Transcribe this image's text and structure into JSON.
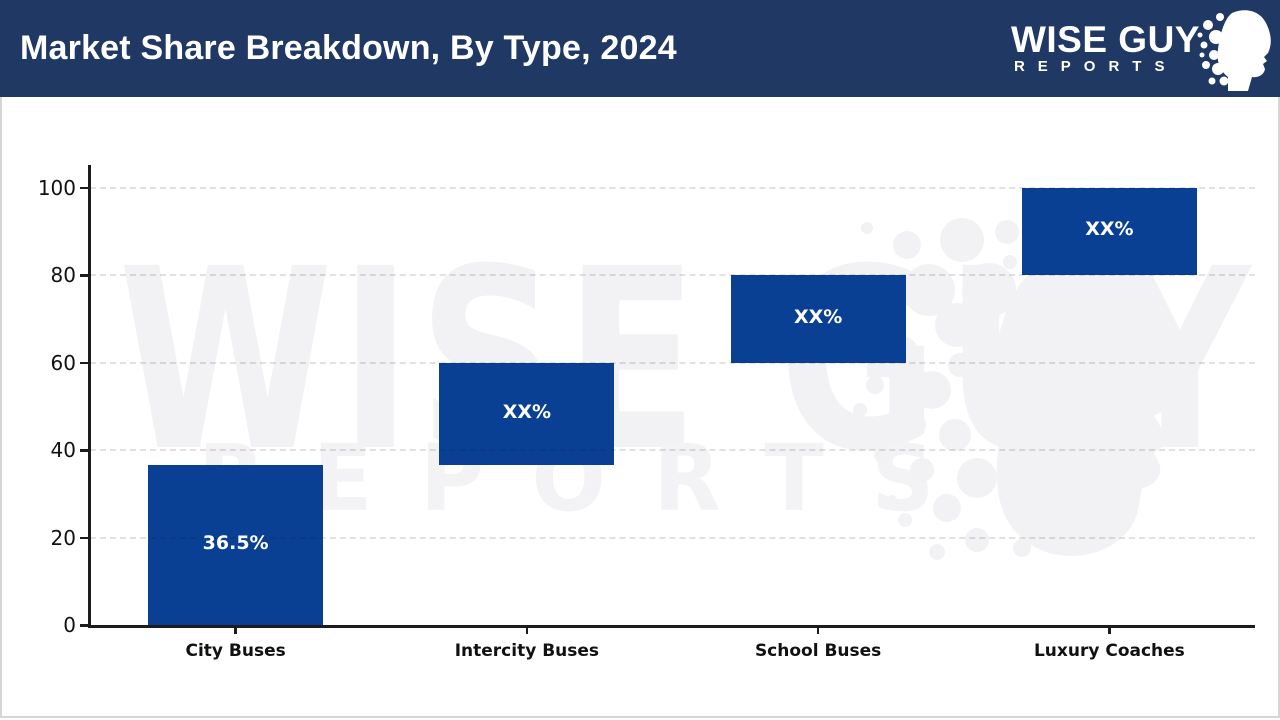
{
  "header": {
    "title": "Market Share Breakdown, By Type, 2024",
    "bg_color": "#1f3864",
    "logo": {
      "line1": "WISE GUY",
      "line2": "REPORTS"
    }
  },
  "watermark": {
    "line1": "WISE GUY",
    "line2": "REPORTS"
  },
  "chart_data": {
    "type": "bar",
    "subtype": "waterfall",
    "title": "Market Share Breakdown, By Type, 2024",
    "categories": [
      "City Buses",
      "Intercity Buses",
      "School Buses",
      "Luxury Coaches"
    ],
    "segments": [
      {
        "category": "City Buses",
        "start": 0,
        "end": 36.5,
        "label": "36.5%"
      },
      {
        "category": "Intercity Buses",
        "start": 36.5,
        "end": 60,
        "label": "XX%"
      },
      {
        "category": "School Buses",
        "start": 60,
        "end": 80,
        "label": "XX%"
      },
      {
        "category": "Luxury Coaches",
        "start": 80,
        "end": 100,
        "label": "XX%"
      }
    ],
    "xlabel": "",
    "ylabel": "",
    "ylim": [
      0,
      100
    ],
    "yticks": [
      0,
      20,
      40,
      60,
      80,
      100
    ],
    "grid": "horizontal-dashed",
    "legend": "none",
    "bar_color": "#0a4094",
    "bar_label_color": "#ffffff",
    "axis_color": "#1c1c1c",
    "tick_label_color": "#111111"
  }
}
